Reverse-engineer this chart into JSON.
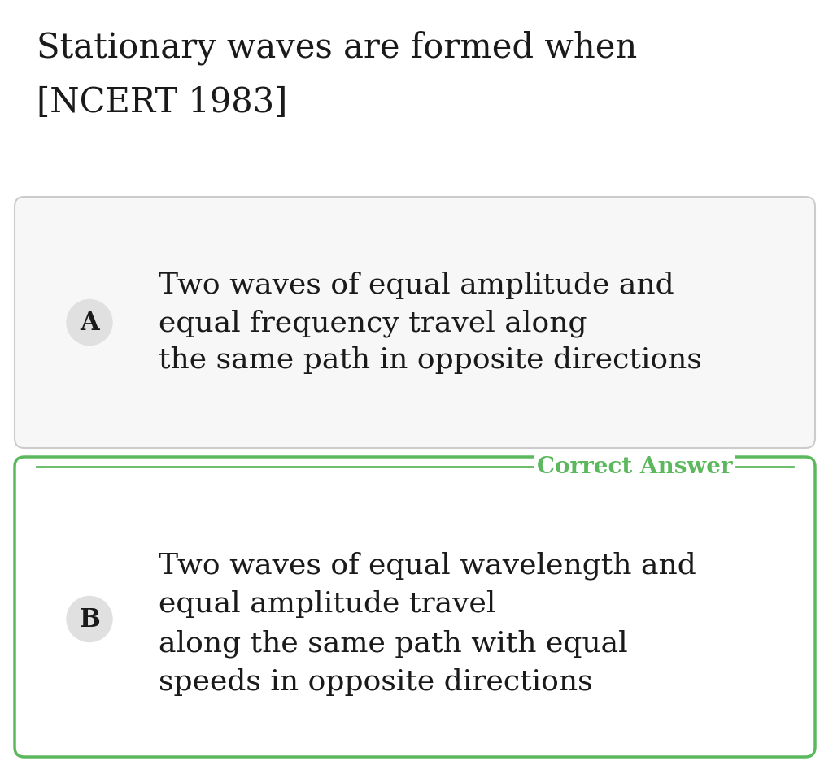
{
  "background_color": "#ffffff",
  "title_line1": "Stationary waves are formed when",
  "title_line2": "[NCERT 1983]",
  "title_fontsize": 30,
  "title_color": "#1a1a1a",
  "option_A_label": "A",
  "option_A_text_line1": "Two waves of equal amplitude and",
  "option_A_text_line2": "equal frequency travel along",
  "option_A_text_line3": "the same path in opposite directions",
  "option_A_box_color": "#f7f7f7",
  "option_A_border_color": "#cccccc",
  "option_A_text_color": "#1a1a1a",
  "option_A_fontsize": 26,
  "option_B_label": "B",
  "option_B_text_line1": "Two waves of equal wavelength and",
  "option_B_text_line2": "equal amplitude travel",
  "option_B_text_line3": "along the same path with equal",
  "option_B_text_line4": "speeds in opposite directions",
  "option_B_box_color": "#ffffff",
  "option_B_border_color": "#5cb85c",
  "option_B_text_color": "#1a1a1a",
  "option_B_fontsize": 26,
  "correct_answer_label": "Correct Answer",
  "correct_answer_color": "#5cb85c",
  "correct_answer_fontsize": 20,
  "circle_color": "#e0e0e0",
  "circle_label_color": "#1a1a1a",
  "circle_fontsize": 22
}
